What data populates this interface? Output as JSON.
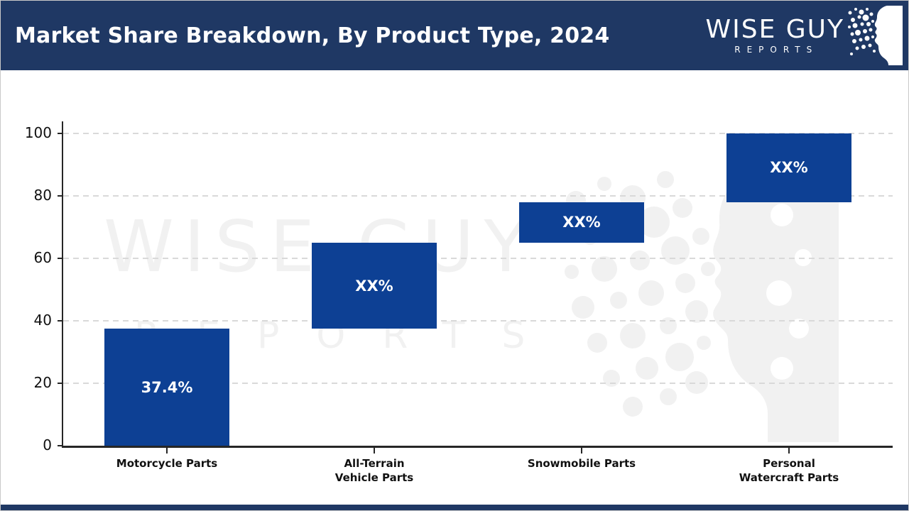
{
  "header": {
    "bg_color": "#1f3864",
    "title": "Market Share Breakdown, By Product Type, 2024",
    "logo": {
      "name1": "WISE GUY",
      "name2": "REPORTS"
    }
  },
  "watermark": {
    "line1": "WISE GUY",
    "line2": "REPORTS"
  },
  "footer": {
    "bg_color": "#1f3864"
  },
  "chart_data": {
    "type": "bar",
    "subtype": "floating-segment-breakdown",
    "title": "Market Share Breakdown, By Product Type, 2024",
    "categories": [
      "Motorcycle Parts",
      "All-Terrain Vehicle Parts",
      "Snowmobile Parts",
      "Personal Watercraft Parts"
    ],
    "category_tick_lines": [
      [
        "Motorcycle Parts"
      ],
      [
        "All-Terrain",
        "Vehicle Parts"
      ],
      [
        "Snowmobile Parts"
      ],
      [
        "Personal",
        "Watercraft Parts"
      ]
    ],
    "series": [
      {
        "name": "Motorcycle Parts",
        "range": [
          0,
          37.4
        ],
        "value": 37.4,
        "label": "37.4%"
      },
      {
        "name": "All-Terrain Vehicle Parts",
        "range": [
          37.4,
          65
        ],
        "value": 27.6,
        "label": "XX%"
      },
      {
        "name": "Snowmobile Parts",
        "range": [
          65,
          78
        ],
        "value": 13.0,
        "label": "XX%"
      },
      {
        "name": "Personal Watercraft Parts",
        "range": [
          78,
          100
        ],
        "value": 22.0,
        "label": "XX%"
      }
    ],
    "ylim": [
      0,
      100
    ],
    "yticks": [
      0,
      20,
      40,
      60,
      80,
      100
    ],
    "xlabel": "",
    "ylabel": "",
    "grid": "horizontal dashed",
    "legend": "none",
    "bar_color": "#0d4094",
    "bar_label_color": "#ffffff",
    "axis_color": "#262626",
    "grid_color": "#d9d9d9",
    "tick_label_color": "#111111"
  }
}
